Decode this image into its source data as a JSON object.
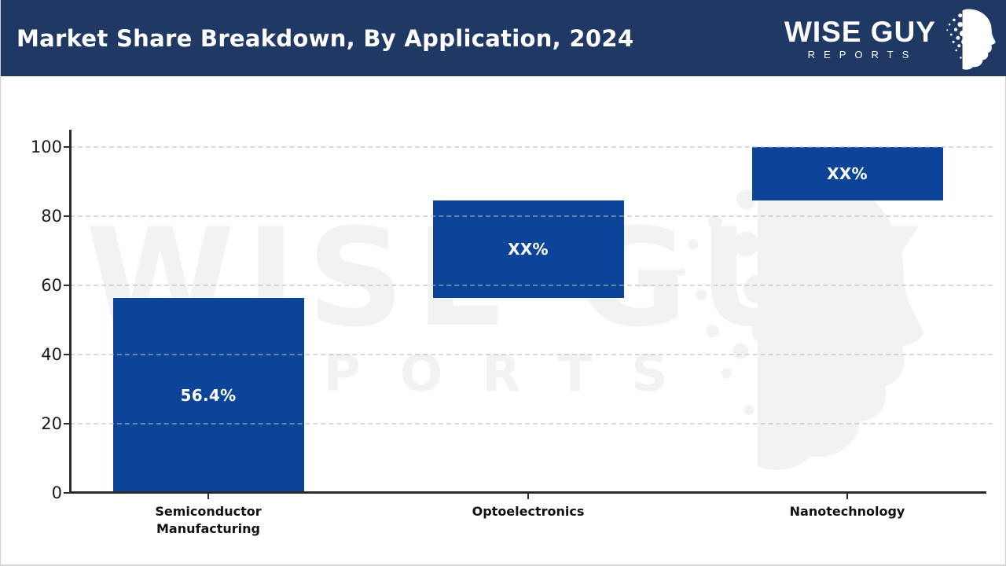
{
  "header": {
    "title": "Market Share Breakdown, By Application, 2024",
    "logo": {
      "line1": "WISE GUY",
      "line2": "REPORTS"
    }
  },
  "watermark": {
    "line1": "WISE GUY",
    "line2": "REPORTS"
  },
  "colors": {
    "header_bg": "#1f3864",
    "bar": "#0b4499",
    "bar_label": "#ffffff",
    "gridline": "#bdbdbd",
    "axis": "#2b2b2b",
    "watermark": "#f2f2f2"
  },
  "chart_data": {
    "type": "bar",
    "subtype": "waterfall (floating stacked-percentage bars, total = 100%)",
    "title": "Market Share Breakdown, By Application, 2024",
    "categories": [
      "Semiconductor Manufacturing",
      "Optoelectronics",
      "Nanotechnology"
    ],
    "bars": [
      {
        "category": "Semiconductor Manufacturing",
        "from": 0,
        "to": 56.4,
        "value_label": "56.4%"
      },
      {
        "category": "Optoelectronics",
        "from": 56.4,
        "to": 84.6,
        "value_label": "XX%"
      },
      {
        "category": "Nanotechnology",
        "from": 84.6,
        "to": 100,
        "value_label": "XX%"
      }
    ],
    "xlabel": "",
    "ylabel": "",
    "yticks": [
      0,
      20,
      40,
      60,
      80,
      100
    ],
    "ylim": [
      0,
      105
    ],
    "grid": "horizontal dashed light-gray, rendered over bars",
    "legend": null
  }
}
